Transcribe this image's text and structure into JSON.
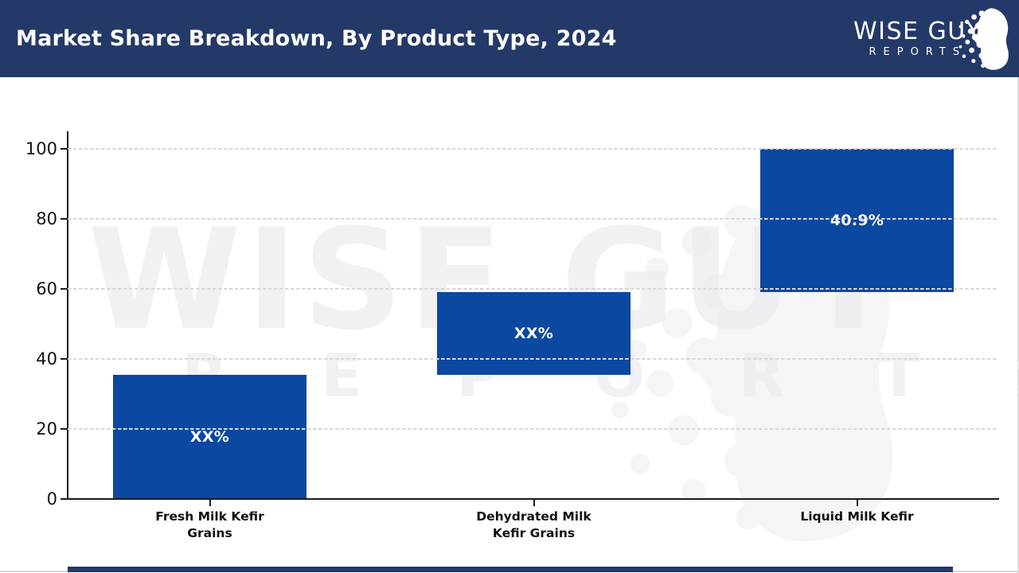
{
  "header": {
    "title": "Market Share Breakdown, By Product Type, 2024",
    "background_color": "#233968",
    "logo": {
      "line1": "WISE GUY",
      "line2": "REPORTS",
      "icon": "dotted-face-profile"
    }
  },
  "watermark": {
    "line1": "WISE GUY",
    "line2": "R E P O R T S",
    "icon": "dotted-face-profile"
  },
  "chart_data": {
    "type": "bar",
    "subtype": "segmented-cumulative-breakdown (floating waterfall segments summing to 100%)",
    "title": "Market Share Breakdown, By Product Type, 2024",
    "categories": [
      "Fresh Milk Kefir Grains",
      "Dehydrated Milk Kefir Grains",
      "Liquid Milk Kefir"
    ],
    "bars": [
      {
        "label_lines": [
          "Fresh Milk Kefir",
          "Grains"
        ],
        "segment_start": 0,
        "segment_end": 35.4,
        "value_label": "XX%"
      },
      {
        "label_lines": [
          "Dehydrated Milk",
          "Kefir Grains"
        ],
        "segment_start": 35.4,
        "segment_end": 59.1,
        "value_label": "XX%"
      },
      {
        "label_lines": [
          "Liquid Milk Kefir"
        ],
        "segment_start": 59.1,
        "segment_end": 100,
        "value_label": "40.9%",
        "value_pct": 40.9
      }
    ],
    "yticks": [
      0,
      20,
      40,
      60,
      80,
      100
    ],
    "ylim": [
      0,
      105
    ],
    "xlabel": "",
    "ylabel": "",
    "grid": "horizontal dashed, drawn over bars",
    "legend": null,
    "bar_color": "#0b48a1",
    "value_label_color": "#ffffff",
    "gridline_color": "#d8d8d8",
    "axis_color": "#1a1a1a"
  },
  "footer": {
    "accent_bar_color": "#233968"
  }
}
